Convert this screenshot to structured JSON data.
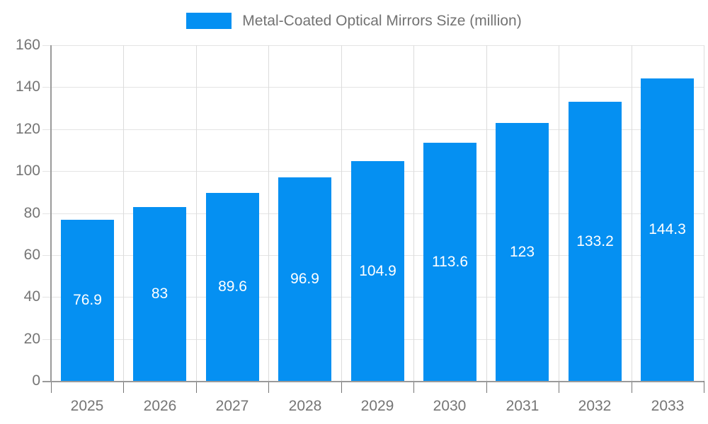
{
  "chart_data": {
    "type": "bar",
    "title": "Metal-Coated Optical Mirrors Size (million)",
    "legend": [
      "Metal-Coated Optical Mirrors Size (million)"
    ],
    "legend_position": "top",
    "categories": [
      "2025",
      "2026",
      "2027",
      "2028",
      "2029",
      "2030",
      "2031",
      "2032",
      "2033"
    ],
    "values": [
      76.9,
      83,
      89.6,
      96.9,
      104.9,
      113.6,
      123,
      133.2,
      144.3
    ],
    "value_labels": [
      "76.9",
      "83",
      "89.6",
      "96.9",
      "104.9",
      "113.6",
      "123",
      "133.2",
      "144.3"
    ],
    "xlabel": "",
    "ylabel": "",
    "ylim": [
      0,
      160
    ],
    "yticks": [
      0,
      20,
      40,
      60,
      80,
      100,
      120,
      140,
      160
    ],
    "grid": true,
    "value_label_position": "center-inside"
  },
  "colors": {
    "bar": "#0590f2",
    "value_label": "#ffffff",
    "axis_line": "#9a9a9a",
    "grid_horizontal": "#e4e4e4",
    "grid_vertical": "#dcdcdc",
    "tick_text": "#757575",
    "legend_text": "#737373",
    "background": "#ffffff"
  }
}
